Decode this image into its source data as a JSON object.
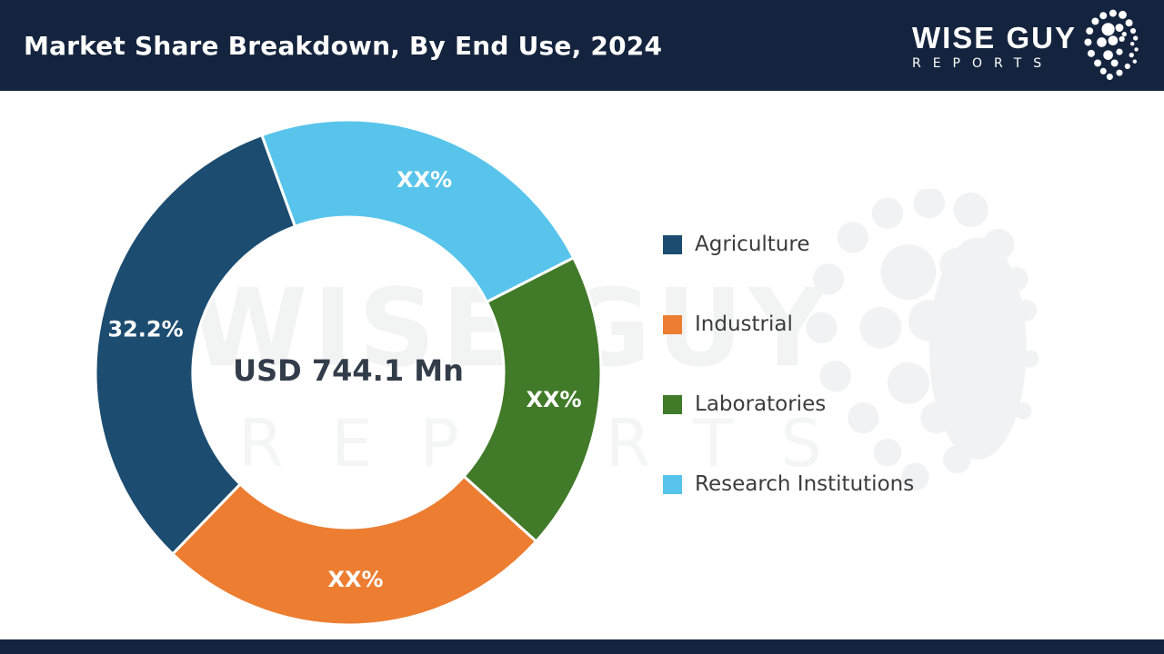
{
  "header": {
    "title": "Market Share Breakdown, By End Use, 2024"
  },
  "logo": {
    "line1": "WISE GUY",
    "line2": "REPORTS"
  },
  "watermark": {
    "line1": "WISE GUY",
    "line2": "REPORTS"
  },
  "chart_data": {
    "type": "pie",
    "donut": true,
    "title": "Market Share Breakdown, By End Use, 2024",
    "center_label": "USD 744.1 Mn",
    "start_angle_deg": 224,
    "segments": [
      {
        "label": "Agriculture",
        "color": "#1C4C70",
        "sweep_deg": 116,
        "value_pct": 32.2,
        "value_display": "32.2%"
      },
      {
        "label": "Research Institutions",
        "color": "#58C4EB",
        "sweep_deg": 83,
        "value_pct": null,
        "value_display": "XX%"
      },
      {
        "label": "Laboratories",
        "color": "#417A28",
        "sweep_deg": 69,
        "value_pct": null,
        "value_display": "XX%"
      },
      {
        "label": "Industrial",
        "color": "#ED7D31",
        "sweep_deg": 92,
        "value_pct": null,
        "value_display": "XX%"
      }
    ],
    "legend": [
      {
        "label": "Agriculture",
        "color": "#1C4C70"
      },
      {
        "label": "Industrial",
        "color": "#ED7D31"
      },
      {
        "label": "Laboratories",
        "color": "#417A28"
      },
      {
        "label": "Research Institutions",
        "color": "#58C4EB"
      }
    ],
    "legend_position": "right"
  }
}
